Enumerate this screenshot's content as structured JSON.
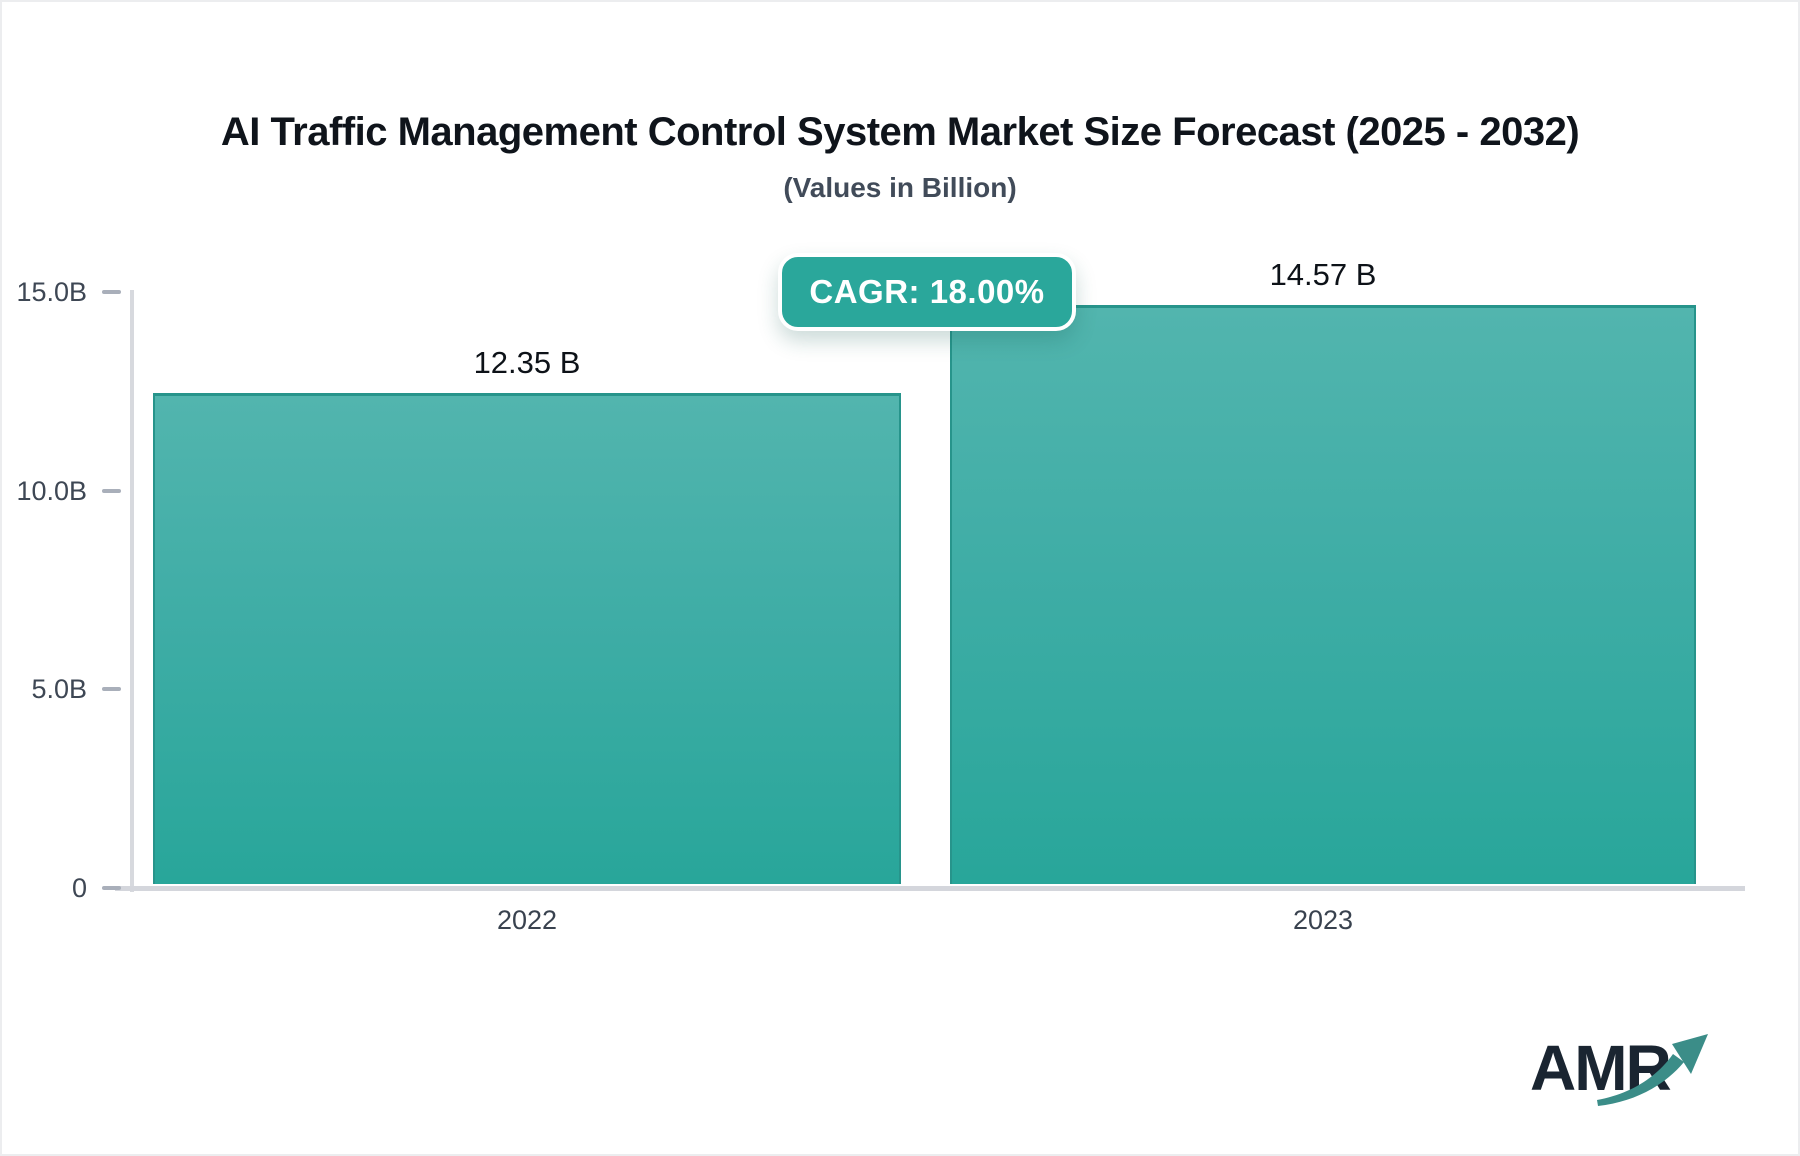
{
  "chart_data": {
    "type": "bar",
    "title": "AI Traffic Management Control System Market Size Forecast (2025 - 2032)",
    "subtitle": "(Values in Billion)",
    "categories": [
      "2022",
      "2023"
    ],
    "values": [
      12.35,
      14.57
    ],
    "value_labels": [
      "12.35 B",
      "14.57 B"
    ],
    "annotation": "CAGR: 18.00%",
    "xlabel": "",
    "ylabel": "",
    "ylim": [
      0,
      15
    ],
    "yticks": [
      {
        "value": 15,
        "label": "15.0B"
      },
      {
        "value": 10,
        "label": "10.0B"
      },
      {
        "value": 5,
        "label": "5.0B"
      },
      {
        "value": 0,
        "label": "0"
      }
    ],
    "grid": false,
    "legend": false,
    "colors": {
      "bar_gradient_top": "#52B5AE",
      "bar_gradient_bottom": "#28A69A",
      "bar_border": "#27948B",
      "badge_bg": "#2AA79B",
      "badge_text": "#FFFFFF",
      "axis_line": "#D7D9DE",
      "tick_text": "#3E4754",
      "value_text": "#0D1218",
      "title_text": "#0F141B"
    }
  },
  "badge": {
    "label": "CAGR: 18.00%"
  },
  "logo": {
    "text": "AMR",
    "arrow_color": "#3B8D88",
    "text_color": "#1A2531"
  }
}
